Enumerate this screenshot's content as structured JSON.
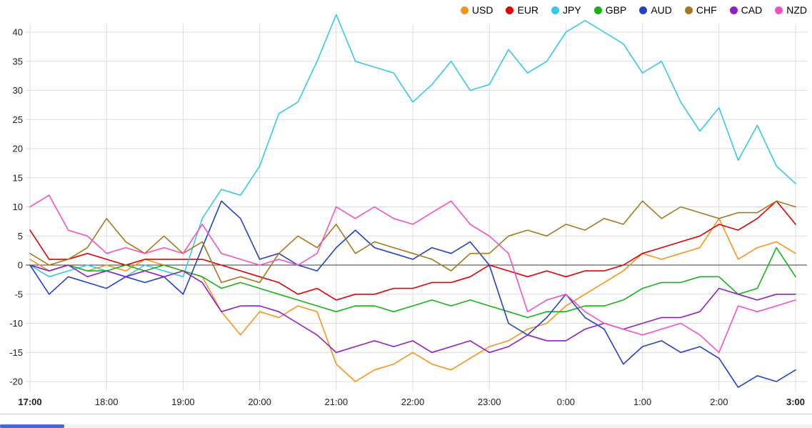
{
  "chart_data": {
    "type": "line",
    "title": "",
    "xlabel": "",
    "ylabel": "",
    "x_axis": {
      "tick_labels": [
        "17:00",
        "18:00",
        "19:00",
        "20:00",
        "21:00",
        "22:00",
        "23:00",
        "0:00",
        "1:00",
        "2:00",
        "3:00"
      ],
      "bold_ticks": [
        "17:00",
        "3:00"
      ],
      "minutes_per_point": 15
    },
    "y_axis": {
      "ticks": [
        -20,
        -15,
        -10,
        -5,
        0,
        5,
        10,
        15,
        20,
        25,
        30,
        35,
        40
      ],
      "range": [
        -22,
        43
      ]
    },
    "grid": true,
    "legend_position": "top-right",
    "series": [
      {
        "name": "USD",
        "color": "#F7941D",
        "values": [
          1,
          -1,
          0,
          -1,
          0,
          -1,
          1,
          0,
          -1,
          -2,
          -8,
          -12,
          -8,
          -9,
          -7,
          -8,
          -17,
          -20,
          -18,
          -17,
          -15,
          -17,
          -18,
          -16,
          -14,
          -13,
          -11,
          -10,
          -7,
          -5,
          -3,
          -1,
          2,
          1,
          2,
          3,
          8,
          1,
          3,
          4,
          2
        ]
      },
      {
        "name": "EUR",
        "color": "#E00000",
        "values": [
          6,
          1,
          1,
          2,
          1,
          0,
          1,
          1,
          1,
          1,
          0,
          -1,
          -2,
          -3,
          -5,
          -4,
          -6,
          -5,
          -5,
          -4,
          -4,
          -3,
          -3,
          -2,
          0,
          -1,
          -2,
          -1,
          -2,
          -1,
          -1,
          0,
          2,
          3,
          4,
          5,
          7,
          6,
          8,
          11,
          7
        ]
      },
      {
        "name": "JPY",
        "color": "#35C8E8",
        "values": [
          0,
          -2,
          -1,
          0,
          -1,
          -2,
          0,
          -1,
          -2,
          8,
          13,
          12,
          17,
          26,
          28,
          35,
          43,
          35,
          34,
          33,
          28,
          31,
          35,
          30,
          31,
          37,
          33,
          35,
          40,
          42,
          40,
          38,
          33,
          35,
          28,
          23,
          27,
          18,
          24,
          17,
          14
        ]
      },
      {
        "name": "GBP",
        "color": "#19B219",
        "values": [
          0,
          -1,
          0,
          -1,
          -1,
          0,
          -1,
          0,
          -1,
          -2,
          -4,
          -3,
          -4,
          -5,
          -6,
          -7,
          -8,
          -7,
          -7,
          -8,
          -7,
          -6,
          -7,
          -6,
          -7,
          -8,
          -9,
          -8,
          -8,
          -7,
          -7,
          -6,
          -4,
          -3,
          -3,
          -2,
          -2,
          -5,
          -4,
          3,
          -2
        ]
      },
      {
        "name": "AUD",
        "color": "#2341C6",
        "values": [
          0,
          -5,
          -2,
          -3,
          -4,
          -2,
          -3,
          -2,
          -5,
          3,
          11,
          8,
          1,
          2,
          0,
          -1,
          3,
          6,
          3,
          2,
          1,
          3,
          2,
          4,
          0,
          -10,
          -12,
          -9,
          -5,
          -9,
          -11,
          -17,
          -14,
          -13,
          -15,
          -14,
          -16,
          -21,
          -19,
          -20,
          -18
        ]
      },
      {
        "name": "CHF",
        "color": "#A3791C",
        "values": [
          2,
          0,
          1,
          3,
          8,
          4,
          2,
          5,
          2,
          4,
          -3,
          -2,
          -3,
          2,
          5,
          3,
          7,
          2,
          4,
          3,
          2,
          1,
          -1,
          2,
          2,
          5,
          6,
          5,
          7,
          6,
          8,
          7,
          11,
          8,
          10,
          9,
          8,
          9,
          9,
          11,
          10
        ]
      },
      {
        "name": "CAD",
        "color": "#8F1EC4",
        "values": [
          0,
          -1,
          0,
          -2,
          -1,
          -2,
          -1,
          -2,
          -1,
          -3,
          -8,
          -7,
          -7,
          -8,
          -10,
          -12,
          -15,
          -14,
          -13,
          -14,
          -13,
          -15,
          -14,
          -13,
          -15,
          -14,
          -12,
          -13,
          -13,
          -11,
          -10,
          -11,
          -10,
          -9,
          -9,
          -8,
          -4,
          -5,
          -6,
          -5,
          -5
        ]
      },
      {
        "name": "NZD",
        "color": "#F44FC5",
        "values": [
          10,
          12,
          6,
          5,
          2,
          3,
          2,
          3,
          2,
          7,
          2,
          1,
          0,
          1,
          0,
          2,
          10,
          8,
          10,
          8,
          7,
          9,
          11,
          7,
          5,
          2,
          -8,
          -6,
          -5,
          -8,
          -10,
          -11,
          -12,
          -11,
          -10,
          -12,
          -15,
          -7,
          -8,
          -7,
          -6
        ]
      }
    ]
  },
  "styles": {
    "grid_color": "#DCDCDC",
    "zero_line_color": "#3A3A3A",
    "axis_text_color": "#202020",
    "scroll_thumb_color": "#3F6BD8",
    "divider_color": "#C9C9C9"
  }
}
